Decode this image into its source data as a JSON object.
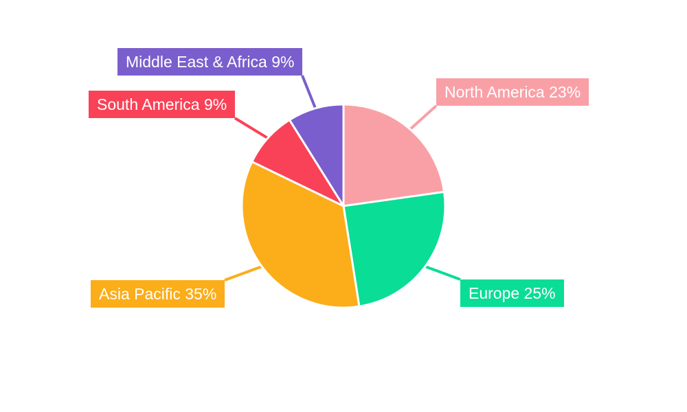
{
  "chart_data": {
    "type": "pie",
    "title": "",
    "unit": "%",
    "categories": [
      "North America",
      "Europe",
      "Asia Pacific",
      "South America",
      "Middle East & Africa"
    ],
    "values": [
      23,
      25,
      35,
      9,
      9
    ],
    "colors": [
      "#F9A0A6",
      "#0ADD96",
      "#FBAD1A",
      "#F94257",
      "#7A5ECD"
    ],
    "slice_labels": [
      "North America 23%",
      "Europe 25%",
      "Asia Pacific 35%",
      "South America 9%",
      "Middle East & Africa 9%"
    ],
    "label_text_color": "#FFFFFF",
    "background": "#FFFFFF",
    "separator_color": "#FFFFFF",
    "start_angle_deg": 0,
    "direction": "clockwise",
    "legend_position": "callout-boxes",
    "grid": false
  }
}
